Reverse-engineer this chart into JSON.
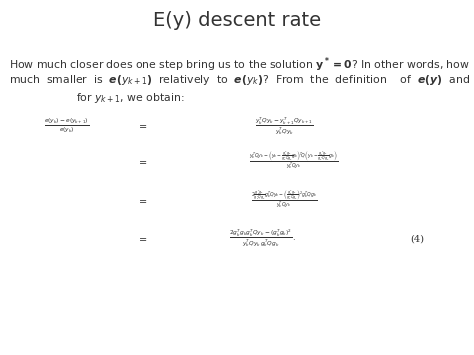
{
  "title": "E(y) descent rate",
  "title_fontsize": 14,
  "body_fontsize": 7.8,
  "eq_fontsize": 6.0,
  "small_eq_fontsize": 4.8,
  "background_color": "#ffffff",
  "text_color": "#333333",
  "figsize": [
    4.74,
    3.55
  ],
  "dpi": 100,
  "eq_number": "(4)"
}
